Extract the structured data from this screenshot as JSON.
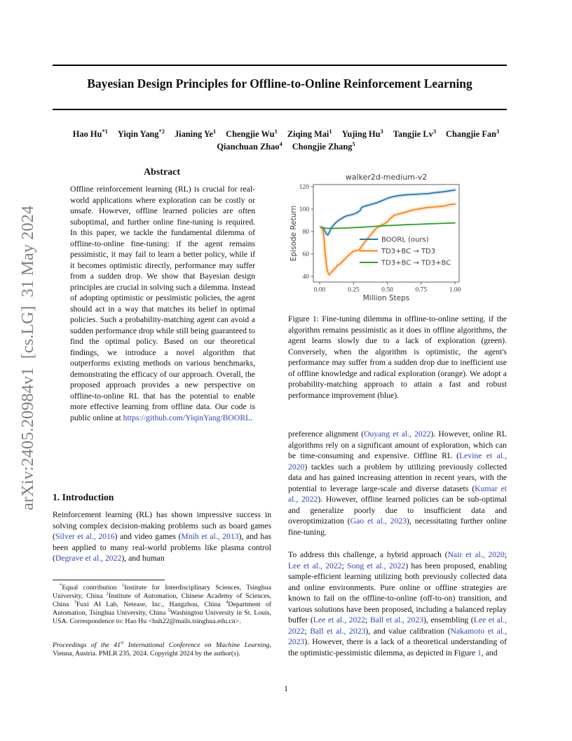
{
  "arxiv_banner": "arXiv:2405.20984v1  [cs.LG]  31 May 2024",
  "page_number": "1",
  "colors": {
    "link_blue": "#3344bb",
    "banner_gray": "#808080",
    "series_blue": "#1f77b4",
    "series_orange": "#ff7f0e",
    "series_green": "#2ca02c"
  },
  "header": {
    "title": "Bayesian Design Principles for Offline-to-Online Reinforcement Learning",
    "authors_row1": [
      {
        "name": "Hao Hu",
        "sup": "*1"
      },
      {
        "name": "Yiqin Yang",
        "sup": "*2"
      },
      {
        "name": "Jianing Ye",
        "sup": "1"
      },
      {
        "name": "Chengjie Wu",
        "sup": "1"
      },
      {
        "name": "Ziqing Mai",
        "sup": "1"
      },
      {
        "name": "Yujing Hu",
        "sup": "3"
      },
      {
        "name": "Tangjie Lv",
        "sup": "3"
      },
      {
        "name": "Changjie Fan",
        "sup": "3"
      }
    ],
    "authors_row2": [
      {
        "name": "Qianchuan Zhao",
        "sup": "4"
      },
      {
        "name": "Chongjie Zhang",
        "sup": "5"
      }
    ]
  },
  "abstract": {
    "heading": "Abstract",
    "body": [
      {
        "text": "Offline reinforcement learning (RL) is crucial for real-world applications where exploration can be costly or unsafe. However, offline learned policies are often suboptimal, and further online fine-tuning is required. In this paper, we tackle the fundamental dilemma of offline-to-online fine-tuning: if the agent remains pessimistic, it may fail to learn a better policy, while if it becomes optimistic directly, performance may suffer from a sudden drop. We show that Bayesian design principles are crucial in solving such a dilemma. Instead of adopting optimistic or pessimistic policies, the agent should act in a way that matches its belief in optimal policies. Such a probability-matching agent can avoid a sudden performance drop while still being guaranteed to find the optimal policy. Based on our theoretical findings, we introduce a novel algorithm that outperforms existing methods on various benchmarks, demonstrating the efficacy of our approach. Overall, the proposed approach provides a new perspective on offline-to-online RL that has the potential to enable more effective learning from offline data. Our code is public online at "
      },
      {
        "style": "link",
        "text": "https://github.com/YiqinYang/BOORL"
      },
      {
        "text": "."
      }
    ]
  },
  "introduction": {
    "heading": "1. Introduction",
    "para1": [
      {
        "text": "Reinforcement learning (RL) has shown impressive success in solving complex decision-making problems such as board games ("
      },
      {
        "style": "link",
        "text": "Silver et al., 2016"
      },
      {
        "text": ") and video games ("
      },
      {
        "style": "link",
        "text": "Mnih et al., 2013"
      },
      {
        "text": "), and has been applied to many real-world problems like plasma control ("
      },
      {
        "style": "link",
        "text": "Degrave et al., 2022"
      },
      {
        "text": "), and human"
      }
    ]
  },
  "footnotes": {
    "affiliations": [
      {
        "style": "sup",
        "text": "*"
      },
      {
        "text": "Equal contribution  "
      },
      {
        "style": "sup",
        "text": "1"
      },
      {
        "text": "Institute for Interdisciplinary Sciences, Tsinghua University, China "
      },
      {
        "style": "sup",
        "text": "2"
      },
      {
        "text": "Institute of Automation, Chinese Academy of Sciences, China "
      },
      {
        "style": "sup",
        "text": "3"
      },
      {
        "text": "Fuxi AI Lab, Netease, Inc., Hangzhou, China "
      },
      {
        "style": "sup",
        "text": "4"
      },
      {
        "text": "Department of Automation, Tsinghua University, China "
      },
      {
        "style": "sup",
        "text": "5"
      },
      {
        "text": "Washington University in St. Louis, USA. Correspondence to: Hao Hu <huh22@mails.tsinghua.edu.cn>."
      }
    ],
    "proceedings": [
      {
        "style": "italic",
        "text": "Proceedings of the 41"
      },
      {
        "style": "italic-sup",
        "text": "st"
      },
      {
        "style": "italic",
        "text": " International Conference on Machine Learning"
      },
      {
        "text": ", Vienna, Austria. PMLR 235, 2024. Copyright 2024 by the author(s)."
      }
    ]
  },
  "figure1": {
    "caption": "Figure 1: Fine-tuning dilemma in offline-to-online setting. if the algorithm remains pessimistic as it does in offline algorithms, the agent learns slowly due to a lack of exploration (green). Conversely, when the algorithm is optimistic, the agent's performance may suffer from a sudden drop due to inefficient use of offline knowledge and radical exploration (orange). We adopt a probability-matching approach to attain a fast and robust performance improvement (blue)."
  },
  "chart_data": {
    "type": "line",
    "title": "walker2d-medium-v2",
    "xlabel": "Million Steps",
    "ylabel": "Episode Return",
    "xlim": [
      -0.047,
      1.031
    ],
    "ylim": [
      35,
      121.9
    ],
    "xticks": [
      0.0,
      0.25,
      0.5,
      0.75,
      1.0
    ],
    "yticks": [
      40,
      60,
      80,
      100,
      120
    ],
    "grid": false,
    "legend_position": "center-inside",
    "series": [
      {
        "name": "BOORL (ours)",
        "color": "#1f77b4",
        "band": 5,
        "x": [
          0.01,
          0.02,
          0.03,
          0.04,
          0.05,
          0.06,
          0.07,
          0.08,
          0.1,
          0.12,
          0.14,
          0.16,
          0.18,
          0.2,
          0.22,
          0.25,
          0.27,
          0.28,
          0.3,
          0.31,
          0.33,
          0.36,
          0.39,
          0.42,
          0.45,
          0.48,
          0.51,
          0.54,
          0.57,
          0.6,
          0.64,
          0.68,
          0.72,
          0.76,
          0.8,
          0.84,
          0.88,
          0.92,
          0.96,
          1.0
        ],
        "y": [
          84,
          83.5,
          82.5,
          80,
          78,
          77,
          79,
          82,
          85.5,
          88,
          90,
          91.5,
          93,
          94,
          94.5,
          95.5,
          96.5,
          97,
          99,
          101.5,
          102.5,
          103.5,
          104.5,
          105.5,
          107,
          108.5,
          110,
          111,
          111.8,
          112.3,
          112.8,
          113,
          113.3,
          113.6,
          113.8,
          114.5,
          115,
          115.5,
          116.3,
          117
        ]
      },
      {
        "name": "TD3+BC → TD3",
        "color": "#ff7f0e",
        "band": 6,
        "x": [
          0.01,
          0.02,
          0.03,
          0.04,
          0.05,
          0.06,
          0.07,
          0.08,
          0.1,
          0.12,
          0.13,
          0.15,
          0.17,
          0.19,
          0.21,
          0.23,
          0.25,
          0.27,
          0.29,
          0.3,
          0.32,
          0.34,
          0.36,
          0.38,
          0.4,
          0.42,
          0.44,
          0.46,
          0.48,
          0.5,
          0.52,
          0.55,
          0.58,
          0.61,
          0.64,
          0.67,
          0.7,
          0.73,
          0.76,
          0.8,
          0.84,
          0.88,
          0.92,
          0.96,
          1.0
        ],
        "y": [
          84,
          83,
          76,
          62,
          50,
          44,
          41.5,
          43,
          45.5,
          48,
          50,
          51,
          53.5,
          56,
          58.5,
          60.5,
          62.5,
          63,
          63.5,
          65,
          68.5,
          71.5,
          74.5,
          77.5,
          80.5,
          83,
          84.5,
          86,
          87,
          88.5,
          91.5,
          94.5,
          95.5,
          96.5,
          97.5,
          98.5,
          99.5,
          100,
          100.8,
          101.5,
          101.8,
          102.3,
          102.8,
          104,
          104.5
        ]
      },
      {
        "name": "TD3+BC → TD3+BC",
        "color": "#2ca02c",
        "band": 2.5,
        "x": [
          0.01,
          0.05,
          0.1,
          0.15,
          0.2,
          0.25,
          0.3,
          0.35,
          0.4,
          0.45,
          0.5,
          0.55,
          0.6,
          0.65,
          0.7,
          0.75,
          0.8,
          0.85,
          0.9,
          0.95,
          1.0
        ],
        "y": [
          83.5,
          83,
          82.8,
          83,
          83.2,
          83.5,
          83.8,
          84.2,
          84.6,
          85,
          85.3,
          85.6,
          85.9,
          86.2,
          86.4,
          86.6,
          86.9,
          87.1,
          87.3,
          87.5,
          87.7
        ]
      }
    ]
  },
  "right_column": {
    "para1": [
      {
        "text": "preference alignment ("
      },
      {
        "style": "link",
        "text": "Ouyang et al., 2022"
      },
      {
        "text": "). However, online RL algorithms rely on a significant amount of exploration, which can be time-consuming and expensive. Offline RL ("
      },
      {
        "style": "link",
        "text": "Levine et al., 2020"
      },
      {
        "text": ") tackles such a problem by utilizing previously collected data and has gained increasing attention in recent years, with the potential to leverage large-scale and diverse datasets ("
      },
      {
        "style": "link",
        "text": "Kumar et al., 2022"
      },
      {
        "text": "). However, offline learned policies can be sub-optimal and generalize poorly due to insufficient data and overoptimization ("
      },
      {
        "style": "link",
        "text": "Gao et al., 2023"
      },
      {
        "text": "), necessitating further online fine-tuning."
      }
    ],
    "para2": [
      {
        "text": "To address this challenge, a hybrid approach ("
      },
      {
        "style": "link",
        "text": "Nair et al., 2020"
      },
      {
        "text": "; "
      },
      {
        "style": "link",
        "text": "Lee et al., 2022"
      },
      {
        "text": "; "
      },
      {
        "style": "link",
        "text": "Song et al., 2022"
      },
      {
        "text": ") has been proposed, enabling sample-efficient learning utilizing both previously collected data and online environments. Pure online or offline strategies are known to fail on the offline-to-online (off-to-on) transition, and various solutions have been proposed, including a balanced replay buffer ("
      },
      {
        "style": "link",
        "text": "Lee et al., 2022"
      },
      {
        "text": "; "
      },
      {
        "style": "link",
        "text": "Ball et al., 2023"
      },
      {
        "text": "), ensembling ("
      },
      {
        "style": "link",
        "text": "Lee et al., 2022"
      },
      {
        "text": "; "
      },
      {
        "style": "link",
        "text": "Ball et al., 2023"
      },
      {
        "text": "), and value calibration ("
      },
      {
        "style": "link",
        "text": "Nakamoto et al., 2023"
      },
      {
        "text": "). However, there is a lack of a theoretical understanding of the optimistic-pessimistic dilemma, as depicted in Figure "
      },
      {
        "style": "link",
        "text": "1"
      },
      {
        "text": ", and"
      }
    ]
  }
}
